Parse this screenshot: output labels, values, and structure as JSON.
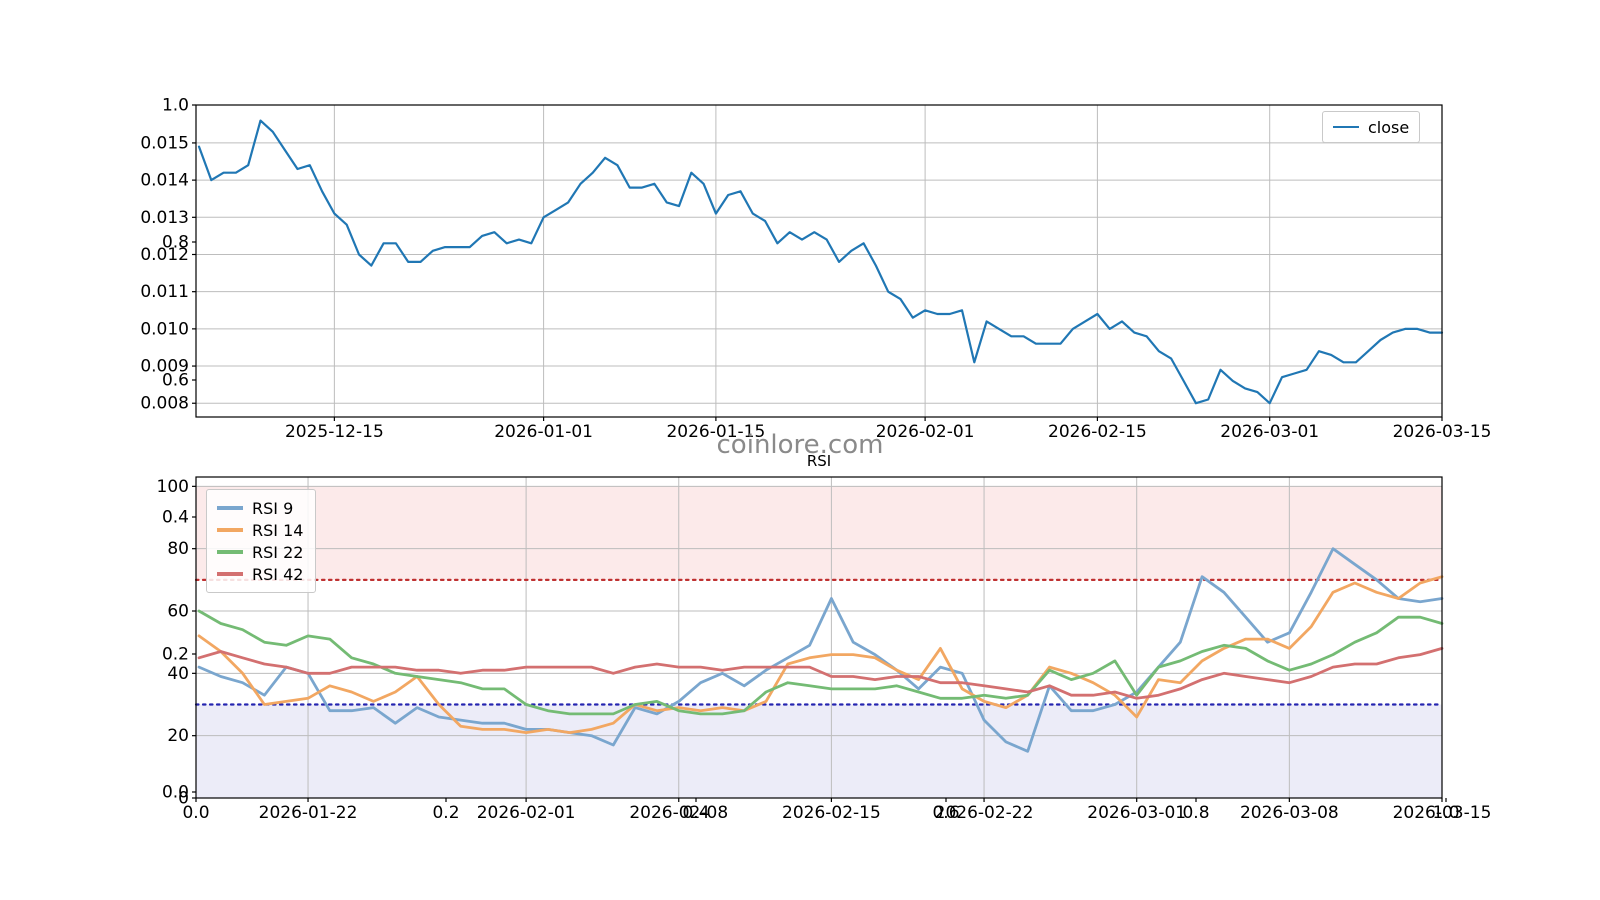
{
  "watermark": "coinlore.com",
  "colors": {
    "close": "#2077b4",
    "rsi9": "#7aa6ce",
    "rsi14": "#f2a762",
    "rsi22": "#74bb74",
    "rsi42": "#d37070",
    "overbought_band": "#fad8d8",
    "oversold_band": "#dcdcf3",
    "overbought_line": "#bf3030",
    "oversold_line": "#2525b0",
    "grid": "#bdbdbd",
    "spine": "#000000",
    "watermark_color": "#8a8a8a"
  },
  "hidden_axes": {
    "x_tick_labels": [
      "0.0",
      "0.2",
      "0.4",
      "0.6",
      "0.8",
      "1.0"
    ],
    "y_tick_labels": [
      "1.0",
      "0.8",
      "0.6",
      "0.4",
      "0.2",
      "0.0"
    ]
  },
  "chart_data": [
    {
      "type": "line",
      "name": "price",
      "title": "",
      "legend_position": "upper right",
      "legend": [
        {
          "label": "close",
          "color_key": "close"
        }
      ],
      "grid": true,
      "x_tick_labels": [
        "2025-12-15",
        "2026-01-01",
        "2026-01-15",
        "2026-02-01",
        "2026-02-15",
        "2026-03-01",
        "2026-03-15"
      ],
      "x_tick_indices": [
        11,
        28,
        42,
        59,
        73,
        87,
        101
      ],
      "x_range": [
        "2025-12-04",
        "2026-03-15"
      ],
      "y_tick_labels": [
        "0.008",
        "0.009",
        "0.010",
        "0.011",
        "0.012",
        "0.013",
        "0.014",
        "0.015"
      ],
      "y_tick_values": [
        0.008,
        0.009,
        0.01,
        0.011,
        0.012,
        0.013,
        0.014,
        0.015
      ],
      "ylim": [
        0.00763,
        0.01602
      ],
      "series": [
        {
          "name": "close",
          "color_key": "close",
          "width": 2.2,
          "values": [
            0.0149,
            0.014,
            0.0142,
            0.0142,
            0.0144,
            0.0156,
            0.0153,
            0.0148,
            0.0143,
            0.0144,
            0.0137,
            0.0131,
            0.0128,
            0.012,
            0.0117,
            0.0123,
            0.0123,
            0.0118,
            0.0118,
            0.0121,
            0.0122,
            0.0122,
            0.0122,
            0.0125,
            0.0126,
            0.0123,
            0.0124,
            0.0123,
            0.013,
            0.0132,
            0.0134,
            0.0139,
            0.0142,
            0.0146,
            0.0144,
            0.0138,
            0.0138,
            0.0139,
            0.0134,
            0.0133,
            0.0142,
            0.0139,
            0.0131,
            0.0136,
            0.0137,
            0.0131,
            0.0129,
            0.0123,
            0.0126,
            0.0124,
            0.0126,
            0.0124,
            0.0118,
            0.0121,
            0.0123,
            0.0117,
            0.011,
            0.0108,
            0.0103,
            0.0105,
            0.0104,
            0.0104,
            0.0105,
            0.0091,
            0.0102,
            0.01,
            0.0098,
            0.0098,
            0.0096,
            0.0096,
            0.0096,
            0.01,
            0.0102,
            0.0104,
            0.01,
            0.0102,
            0.0099,
            0.0098,
            0.0094,
            0.0092,
            0.0086,
            0.008,
            0.0081,
            0.0089,
            0.0086,
            0.0084,
            0.0083,
            0.008,
            0.0087,
            0.0088,
            0.0089,
            0.0094,
            0.0093,
            0.0091,
            0.0091,
            0.0094,
            0.0097,
            0.0099,
            0.01,
            0.01,
            0.0099,
            0.0099
          ]
        }
      ]
    },
    {
      "type": "line",
      "name": "rsi",
      "title": "RSI",
      "legend_position": "upper left",
      "legend": [
        {
          "label": "RSI 9",
          "color_key": "rsi9"
        },
        {
          "label": "RSI 14",
          "color_key": "rsi14"
        },
        {
          "label": "RSI 22",
          "color_key": "rsi22"
        },
        {
          "label": "RSI 42",
          "color_key": "rsi42"
        }
      ],
      "grid": true,
      "x_tick_labels": [
        "2026-01-22",
        "2026-02-01",
        "2026-02-08",
        "2026-02-15",
        "2026-02-22",
        "2026-03-01",
        "2026-03-08",
        "2026-03-15"
      ],
      "x_tick_indices": [
        5,
        15,
        22,
        29,
        36,
        43,
        50,
        57
      ],
      "x_range": [
        "2026-01-17",
        "2026-03-15"
      ],
      "y_tick_labels": [
        "0",
        "20",
        "40",
        "60",
        "80",
        "100"
      ],
      "y_tick_values": [
        0,
        20,
        40,
        60,
        80,
        100
      ],
      "ylim": [
        0,
        103
      ],
      "bands": [
        {
          "from": 70,
          "to": 100,
          "color_key": "overbought_band"
        },
        {
          "from": 0,
          "to": 30,
          "color_key": "oversold_band"
        }
      ],
      "hlines": [
        {
          "value": 70,
          "style": "dotted",
          "color_key": "overbought_line"
        },
        {
          "value": 30,
          "style": "dotted",
          "color_key": "oversold_line"
        }
      ],
      "series": [
        {
          "name": "RSI 9",
          "color_key": "rsi9",
          "width": 2.8,
          "values": [
            42,
            39,
            37,
            33,
            42,
            40,
            28,
            28,
            29,
            24,
            29,
            26,
            25,
            24,
            24,
            22,
            22,
            21,
            20,
            17,
            29,
            27,
            31,
            37,
            40,
            36,
            41,
            45,
            49,
            64,
            50,
            46,
            41,
            35,
            42,
            40,
            25,
            18,
            15,
            36,
            28,
            28,
            30,
            34,
            42,
            50,
            71,
            66,
            58,
            50,
            53,
            66,
            80,
            75,
            70,
            64,
            63,
            64
          ]
        },
        {
          "name": "RSI 14",
          "color_key": "rsi14",
          "width": 2.8,
          "values": [
            52,
            47,
            40,
            30,
            31,
            32,
            36,
            34,
            31,
            34,
            39,
            30,
            23,
            22,
            22,
            21,
            22,
            21,
            22,
            24,
            30,
            28,
            29,
            28,
            29,
            28,
            31,
            43,
            45,
            46,
            46,
            45,
            41,
            38,
            48,
            35,
            31,
            29,
            33,
            42,
            40,
            37,
            33,
            26,
            38,
            37,
            44,
            48,
            51,
            51,
            48,
            55,
            66,
            69,
            66,
            64,
            69,
            71
          ]
        },
        {
          "name": "RSI 22",
          "color_key": "rsi22",
          "width": 2.8,
          "values": [
            60,
            56,
            54,
            50,
            49,
            52,
            51,
            45,
            43,
            40,
            39,
            38,
            37,
            35,
            35,
            30,
            28,
            27,
            27,
            27,
            30,
            31,
            28,
            27,
            27,
            28,
            34,
            37,
            36,
            35,
            35,
            35,
            36,
            34,
            32,
            32,
            33,
            32,
            33,
            41,
            38,
            40,
            44,
            33,
            42,
            44,
            47,
            49,
            48,
            44,
            41,
            43,
            46,
            50,
            53,
            58,
            58,
            56
          ]
        },
        {
          "name": "RSI 42",
          "color_key": "rsi42",
          "width": 2.8,
          "values": [
            45,
            47,
            45,
            43,
            42,
            40,
            40,
            42,
            42,
            42,
            41,
            41,
            40,
            41,
            41,
            42,
            42,
            42,
            42,
            40,
            42,
            43,
            42,
            42,
            41,
            42,
            42,
            42,
            42,
            39,
            39,
            38,
            39,
            39,
            37,
            37,
            36,
            35,
            34,
            36,
            33,
            33,
            34,
            32,
            33,
            35,
            38,
            40,
            39,
            38,
            37,
            39,
            42,
            43,
            43,
            45,
            46,
            48
          ]
        }
      ]
    }
  ]
}
